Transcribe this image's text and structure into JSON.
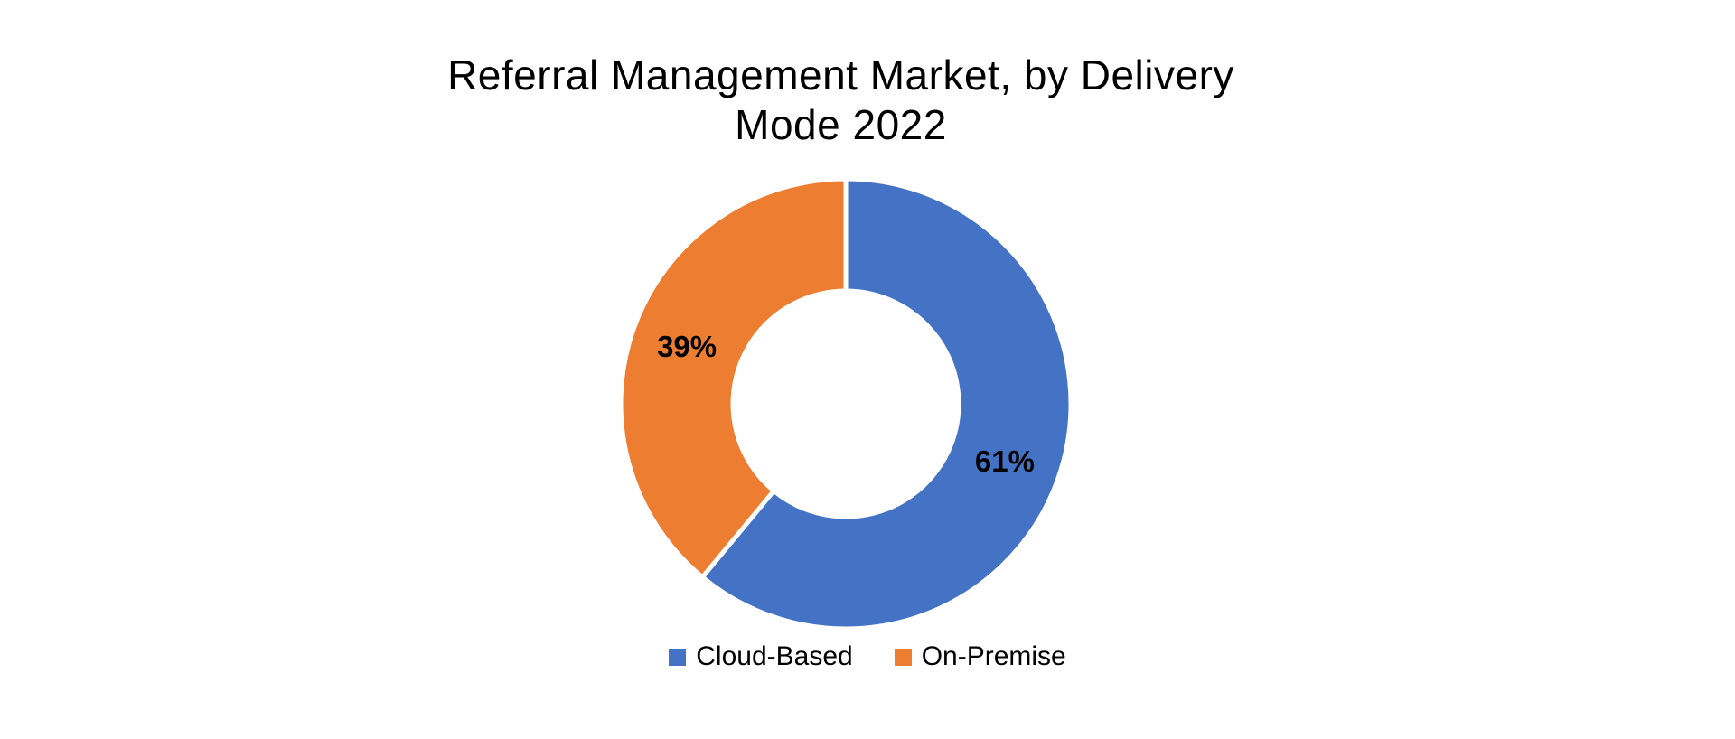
{
  "chart_data": {
    "type": "pie",
    "title": "Referral Management Market, by Delivery Mode 2022",
    "title_lines": [
      "Referral Management Market, by Delivery",
      "Mode 2022"
    ],
    "donut": true,
    "donut_hole_ratio": 0.5,
    "start_angle_deg": 0,
    "direction": "clockwise",
    "categories": [
      "Cloud-Based",
      "On-Premise"
    ],
    "values": [
      61,
      39
    ],
    "labels": [
      "61%",
      "39%"
    ],
    "colors": [
      "#4472C4",
      "#ED7D31"
    ],
    "slice_border_color": "#FFFFFF",
    "label_color": "#000000",
    "background_color": "#FFFFFF",
    "legend_position": "bottom",
    "legend": [
      {
        "label": "Cloud-Based",
        "color": "#4472C4"
      },
      {
        "label": "On-Premise",
        "color": "#ED7D31"
      }
    ]
  }
}
